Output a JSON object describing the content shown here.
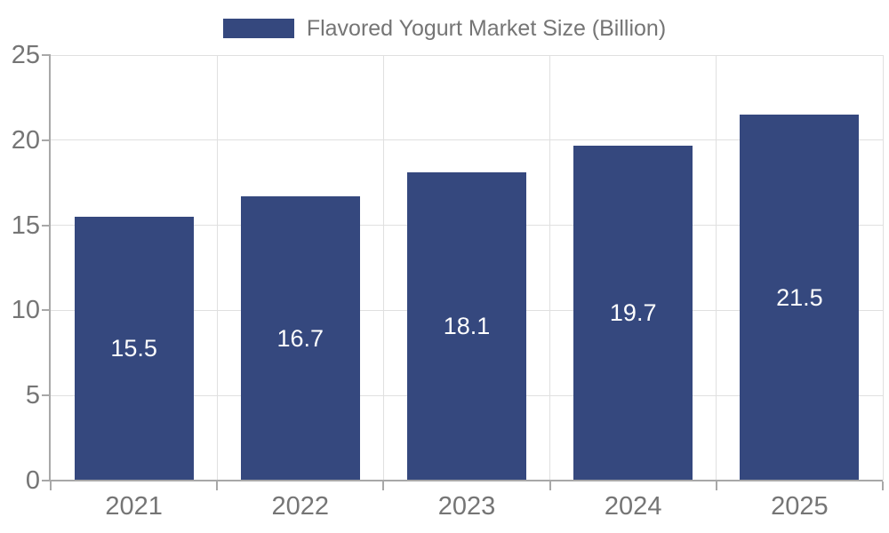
{
  "legend": {
    "label": "Flavored Yogurt Market Size (Billion)"
  },
  "chart_data": {
    "type": "bar",
    "title": "Flavored Yogurt Market Size (Billion)",
    "categories": [
      "2021",
      "2022",
      "2023",
      "2024",
      "2025"
    ],
    "values": [
      15.5,
      16.7,
      18.1,
      19.7,
      21.5
    ],
    "data_labels": [
      "15.5",
      "16.7",
      "18.1",
      "19.7",
      "21.5"
    ],
    "xlabel": "",
    "ylabel": "",
    "ylim": [
      0,
      25
    ],
    "yticks": [
      0,
      5,
      10,
      15,
      20,
      25
    ],
    "grid": true,
    "legend_position": "top",
    "colors": {
      "bar": "#35487e",
      "bar_label": "#ffffff",
      "tick_label": "#757575",
      "legend_text": "#757575",
      "gridline": "#e0e0e0",
      "axis": "#a8a8a8"
    }
  }
}
